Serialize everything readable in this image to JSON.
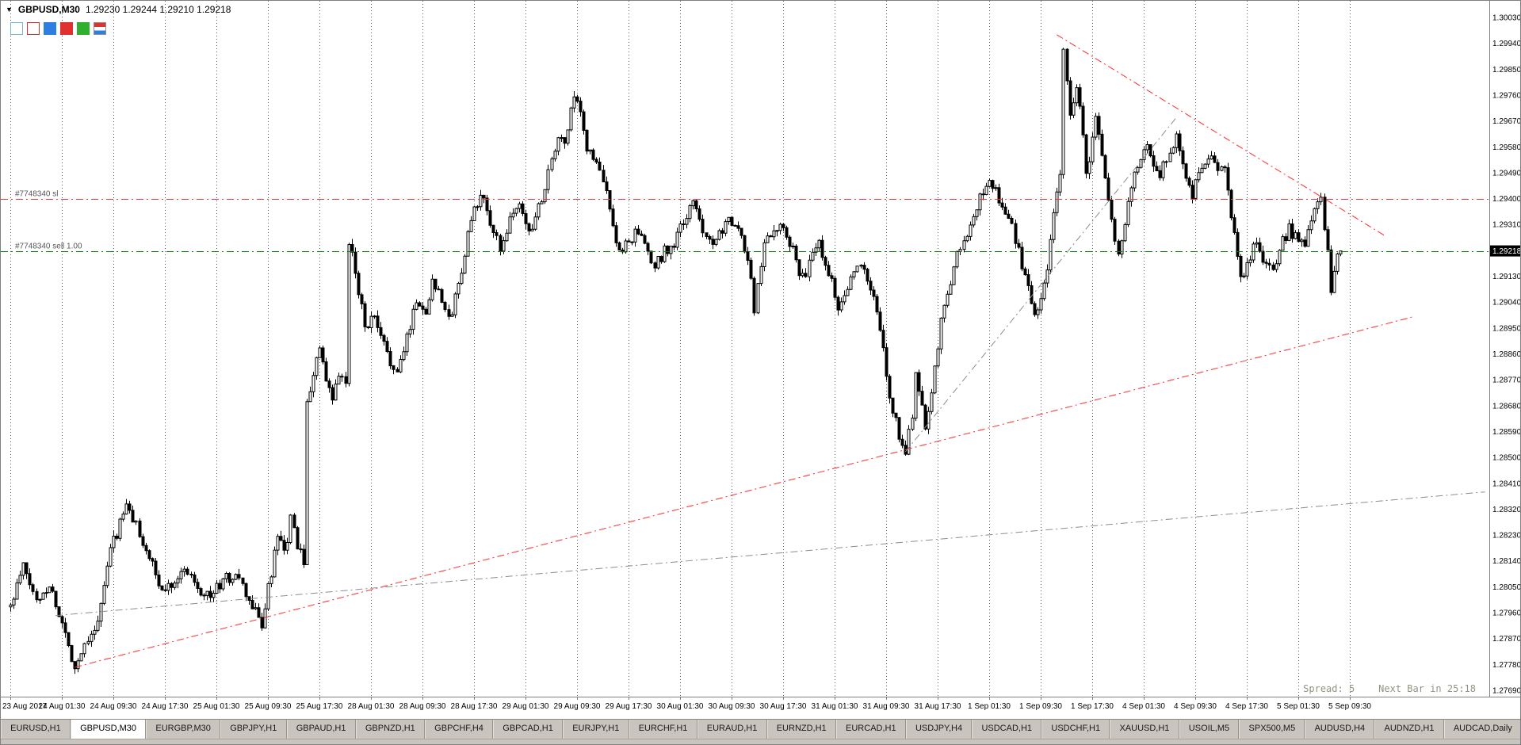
{
  "header": {
    "menu_icon": "▼",
    "symbol_period": "GBPUSD,M30",
    "ohlc": "1.29230 1.29244 1.29210 1.29218"
  },
  "toolbar": {
    "swatches": [
      {
        "name": "outline-blue",
        "fill": "#ffffff",
        "border": "#6fb7e8"
      },
      {
        "name": "outline-red",
        "fill": "#ffffff",
        "border": "#d03030"
      },
      {
        "name": "solid-blue",
        "fill": "#2e7de0",
        "border": "#2e7de0"
      },
      {
        "name": "solid-red",
        "fill": "#e03030",
        "border": "#e03030"
      },
      {
        "name": "solid-green",
        "fill": "#2fb02f",
        "border": "#2fb02f"
      },
      {
        "name": "striped-flag",
        "stripes": [
          "#e03030",
          "#ffffff",
          "#2e7de0"
        ],
        "border": "#909090"
      }
    ]
  },
  "status": {
    "spread": "Spread: 5",
    "next_bar": "Next Bar in 25:18"
  },
  "tab_bar": {
    "active": "GBPUSD,M30",
    "tabs": [
      "EURUSD,H1",
      "GBPUSD,M30",
      "EURGBP,M30",
      "GBPJPY,H1",
      "GBPAUD,H1",
      "GBPNZD,H1",
      "GBPCHF,H4",
      "GBPCAD,H1",
      "EURJPY,H1",
      "EURCHF,H1",
      "EURAUD,H1",
      "EURNZD,H1",
      "EURCAD,H1",
      "USDJPY,H4",
      "USDCAD,H1",
      "USDCHF,H1",
      "XAUUSD,H1",
      "USOIL,M5",
      "SPX500,M5",
      "AUDUSD,H4",
      "AUDNZD,H1",
      "AUDCAD,Daily"
    ]
  },
  "chart_data": {
    "type": "candlestick",
    "symbol": "GBPUSD",
    "timeframe": "M30",
    "ohlc_current": {
      "open": 1.2923,
      "high": 1.29244,
      "low": 1.2921,
      "close": 1.29218
    },
    "current_price": "1.29218",
    "seed": 11,
    "num_bars": 414,
    "noise_amplitude": 0.00022,
    "wick_amplitude": 0.0002,
    "price_axis": {
      "max": 1.3003,
      "min": 1.2769,
      "tick_step": 0.0009,
      "labels": [
        "1.30030",
        "1.29940",
        "1.29850",
        "1.29760",
        "1.29670",
        "1.29580",
        "1.29490",
        "1.29400",
        "1.29310",
        "1.29220",
        "1.29130",
        "1.29040",
        "1.28950",
        "1.28860",
        "1.28770",
        "1.28680",
        "1.28590",
        "1.28500",
        "1.28410",
        "1.28320",
        "1.28230",
        "1.28140",
        "1.28050",
        "1.27960",
        "1.27870",
        "1.27780",
        "1.27690"
      ]
    },
    "time_axis": {
      "bars_per_label": 16,
      "labels": [
        "23 Aug 2017",
        "24 Aug 01:30",
        "24 Aug 09:30",
        "24 Aug 17:30",
        "25 Aug 01:30",
        "25 Aug 09:30",
        "25 Aug 17:30",
        "28 Aug 01:30",
        "28 Aug 09:30",
        "28 Aug 17:30",
        "29 Aug 01:30",
        "29 Aug 09:30",
        "29 Aug 17:30",
        "30 Aug 01:30",
        "30 Aug 09:30",
        "30 Aug 17:30",
        "31 Aug 01:30",
        "31 Aug 09:30",
        "31 Aug 17:30",
        "1 Sep 01:30",
        "1 Sep 09:30",
        "1 Sep 17:30",
        "4 Sep 01:30",
        "4 Sep 09:30",
        "4 Sep 17:30",
        "5 Sep 01:30",
        "5 Sep 09:30"
      ]
    },
    "path_points": [
      [
        0,
        1.2798
      ],
      [
        4,
        1.2812
      ],
      [
        8,
        1.28
      ],
      [
        12,
        1.2806
      ],
      [
        16,
        1.2792
      ],
      [
        20,
        1.2777
      ],
      [
        24,
        1.2788
      ],
      [
        27,
        1.2792
      ],
      [
        31,
        1.2818
      ],
      [
        36,
        1.2833
      ],
      [
        40,
        1.2824
      ],
      [
        44,
        1.2812
      ],
      [
        47,
        1.2803
      ],
      [
        51,
        1.2808
      ],
      [
        55,
        1.2811
      ],
      [
        59,
        1.2804
      ],
      [
        62,
        1.2802
      ],
      [
        66,
        1.2807
      ],
      [
        70,
        1.2809
      ],
      [
        74,
        1.28
      ],
      [
        78,
        1.2792
      ],
      [
        81,
        1.281
      ],
      [
        83,
        1.2822
      ],
      [
        85,
        1.2816
      ],
      [
        87,
        1.2828
      ],
      [
        89,
        1.282
      ],
      [
        91,
        1.2812
      ],
      [
        92,
        1.2868
      ],
      [
        94,
        1.288
      ],
      [
        96,
        1.2888
      ],
      [
        98,
        1.2875
      ],
      [
        100,
        1.287
      ],
      [
        102,
        1.2878
      ],
      [
        104,
        1.2876
      ],
      [
        105,
        1.2924
      ],
      [
        107,
        1.2915
      ],
      [
        110,
        1.2896
      ],
      [
        113,
        1.2898
      ],
      [
        115,
        1.2891
      ],
      [
        118,
        1.2884
      ],
      [
        120,
        1.2878
      ],
      [
        123,
        1.2892
      ],
      [
        126,
        1.2905
      ],
      [
        129,
        1.29
      ],
      [
        131,
        1.2912
      ],
      [
        134,
        1.2906
      ],
      [
        136,
        1.2897
      ],
      [
        139,
        1.291
      ],
      [
        141,
        1.2922
      ],
      [
        143,
        1.2932
      ],
      [
        145,
        1.2938
      ],
      [
        147,
        1.2941
      ],
      [
        149,
        1.293
      ],
      [
        152,
        1.2923
      ],
      [
        155,
        1.2933
      ],
      [
        158,
        1.2938
      ],
      [
        160,
        1.293
      ],
      [
        163,
        1.2932
      ],
      [
        166,
        1.2945
      ],
      [
        168,
        1.2952
      ],
      [
        170,
        1.2962
      ],
      [
        172,
        1.2958
      ],
      [
        175,
        1.2976
      ],
      [
        177,
        1.2968
      ],
      [
        179,
        1.2958
      ],
      [
        182,
        1.2952
      ],
      [
        184,
        1.2945
      ],
      [
        186,
        1.2938
      ],
      [
        189,
        1.292
      ],
      [
        192,
        1.2926
      ],
      [
        195,
        1.2928
      ],
      [
        198,
        1.292
      ],
      [
        200,
        1.2916
      ],
      [
        203,
        1.2922
      ],
      [
        206,
        1.2924
      ],
      [
        209,
        1.2932
      ],
      [
        212,
        1.2938
      ],
      [
        215,
        1.293
      ],
      [
        218,
        1.2925
      ],
      [
        221,
        1.293
      ],
      [
        224,
        1.2932
      ],
      [
        227,
        1.2926
      ],
      [
        229,
        1.292
      ],
      [
        231,
        1.2902
      ],
      [
        233,
        1.2918
      ],
      [
        235,
        1.2928
      ],
      [
        238,
        1.293
      ],
      [
        240,
        1.2932
      ],
      [
        243,
        1.2922
      ],
      [
        246,
        1.2912
      ],
      [
        249,
        1.292
      ],
      [
        251,
        1.2925
      ],
      [
        254,
        1.2915
      ],
      [
        257,
        1.2903
      ],
      [
        260,
        1.291
      ],
      [
        263,
        1.2918
      ],
      [
        266,
        1.2912
      ],
      [
        268,
        1.2905
      ],
      [
        271,
        1.2888
      ],
      [
        273,
        1.287
      ],
      [
        276,
        1.2858
      ],
      [
        278,
        1.2853
      ],
      [
        280,
        1.2865
      ],
      [
        281,
        1.2878
      ],
      [
        283,
        1.2868
      ],
      [
        284,
        1.2862
      ],
      [
        287,
        1.288
      ],
      [
        289,
        1.2898
      ],
      [
        292,
        1.291
      ],
      [
        294,
        1.2922
      ],
      [
        297,
        1.2928
      ],
      [
        299,
        1.2932
      ],
      [
        301,
        1.294
      ],
      [
        303,
        1.2946
      ],
      [
        306,
        1.2942
      ],
      [
        308,
        1.2938
      ],
      [
        311,
        1.293
      ],
      [
        313,
        1.2922
      ],
      [
        316,
        1.2908
      ],
      [
        318,
        1.29
      ],
      [
        320,
        1.2906
      ],
      [
        322,
        1.2913
      ],
      [
        324,
        1.2935
      ],
      [
        326,
        1.295
      ],
      [
        327,
        1.2993
      ],
      [
        329,
        1.2968
      ],
      [
        331,
        1.298
      ],
      [
        333,
        1.2962
      ],
      [
        334,
        1.295
      ],
      [
        336,
        1.296
      ],
      [
        337,
        1.2968
      ],
      [
        339,
        1.2955
      ],
      [
        341,
        1.2938
      ],
      [
        343,
        1.2926
      ],
      [
        344,
        1.292
      ],
      [
        346,
        1.2932
      ],
      [
        348,
        1.2945
      ],
      [
        350,
        1.2952
      ],
      [
        353,
        1.2958
      ],
      [
        355,
        1.2952
      ],
      [
        357,
        1.2948
      ],
      [
        359,
        1.2955
      ],
      [
        362,
        1.2962
      ],
      [
        364,
        1.2952
      ],
      [
        367,
        1.2942
      ],
      [
        369,
        1.2948
      ],
      [
        372,
        1.2955
      ],
      [
        374,
        1.2952
      ],
      [
        377,
        1.295
      ],
      [
        379,
        1.2935
      ],
      [
        382,
        1.2912
      ],
      [
        384,
        1.2918
      ],
      [
        387,
        1.2925
      ],
      [
        389,
        1.292
      ],
      [
        392,
        1.2917
      ],
      [
        394,
        1.2922
      ],
      [
        397,
        1.293
      ],
      [
        399,
        1.2926
      ],
      [
        402,
        1.2925
      ],
      [
        404,
        1.2932
      ],
      [
        407,
        1.294
      ],
      [
        409,
        1.292
      ],
      [
        410,
        1.2906
      ],
      [
        411,
        1.2916
      ],
      [
        413,
        1.29218
      ]
    ],
    "trend_lines": [
      {
        "name": "descending-resistance",
        "color": "#ff2a2a",
        "style": "dashdot",
        "from": [
          325,
          1.2997
        ],
        "to": [
          427,
          1.2927
        ]
      },
      {
        "name": "ascending-support",
        "color": "#ff2a2a",
        "style": "dashdot",
        "from": [
          20,
          1.2777
        ],
        "to": [
          436,
          1.2899
        ]
      },
      {
        "name": "shallow-gray-trend",
        "color": "#8c8c8c",
        "style": "dashdot",
        "from": [
          14,
          1.2795
        ],
        "to": [
          458,
          1.2838
        ]
      },
      {
        "name": "steep-gray-trend",
        "color": "#8c8c8c",
        "style": "dashdot",
        "from": [
          278,
          1.2852
        ],
        "to": [
          362,
          1.2968
        ]
      }
    ],
    "horizontal_lines": [
      {
        "name": "stop-loss-line",
        "price": 1.294,
        "color": "#ff3333",
        "style": "dashdot",
        "label": "#7748340 sl"
      },
      {
        "name": "sell-order-line",
        "price": 1.29218,
        "color": "#008000",
        "style": "dashdot",
        "label": "#7748340 sell 1.00"
      }
    ]
  }
}
